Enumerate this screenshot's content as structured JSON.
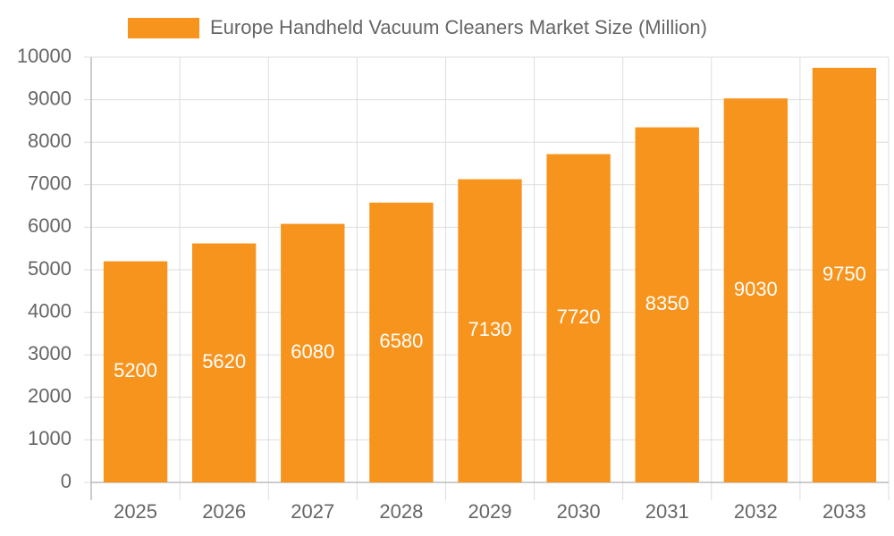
{
  "chart_data": {
    "type": "bar",
    "categories": [
      "2025",
      "2026",
      "2027",
      "2028",
      "2029",
      "2030",
      "2031",
      "2032",
      "2033"
    ],
    "series": [
      {
        "name": "Europe Handheld Vacuum Cleaners Market Size (Million)",
        "color": "#f7941d",
        "values": [
          5200,
          5620,
          6080,
          6580,
          7130,
          7720,
          8350,
          9030,
          9750
        ]
      }
    ],
    "ylim": [
      0,
      10000
    ],
    "yticks": [
      0,
      1000,
      2000,
      3000,
      4000,
      5000,
      6000,
      7000,
      8000,
      9000,
      10000
    ],
    "grid": true,
    "legend": "top"
  }
}
